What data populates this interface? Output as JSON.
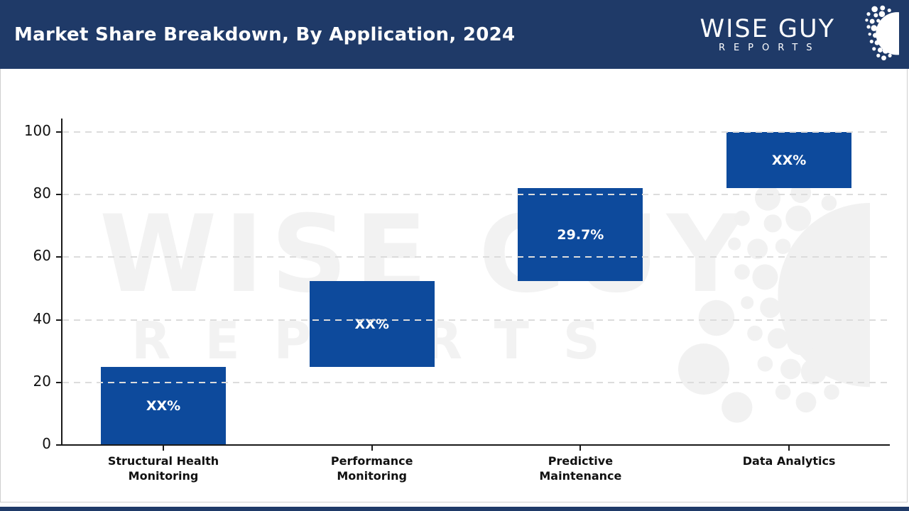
{
  "header": {
    "title": "Market Share Breakdown, By Application, 2024",
    "brand_line1": "WISE GUY",
    "brand_line2": "REPORTS",
    "bg_color": "#1f3a68"
  },
  "watermark": {
    "line1": "WISE GUY",
    "line2": "REPORTS"
  },
  "chart_data": {
    "type": "bar",
    "subtype": "waterfall-floating-bars",
    "title": "Market Share Breakdown, By Application, 2024",
    "categories": [
      {
        "lines": [
          "Structural Health",
          "Monitoring"
        ]
      },
      {
        "lines": [
          "Performance",
          "Monitoring"
        ]
      },
      {
        "lines": [
          "Predictive",
          "Maintenance"
        ]
      },
      {
        "lines": [
          "Data Analytics"
        ]
      }
    ],
    "segments": [
      {
        "start": 0,
        "end": 25,
        "label": "XX%"
      },
      {
        "start": 25,
        "end": 52.3,
        "label": "XX%"
      },
      {
        "start": 52.3,
        "end": 82,
        "label": "29.7%"
      },
      {
        "start": 82,
        "end": 100,
        "label": "XX%"
      }
    ],
    "ylim": [
      0,
      100
    ],
    "yticks": [
      0,
      20,
      40,
      60,
      80,
      100
    ],
    "grid": "horizontal-dashed",
    "legend": "none",
    "bar_color": "#0d4a9c",
    "value_label_color": "#ffffff",
    "axis_color": "#1a1a1a",
    "grid_color": "#dcdcdc"
  }
}
